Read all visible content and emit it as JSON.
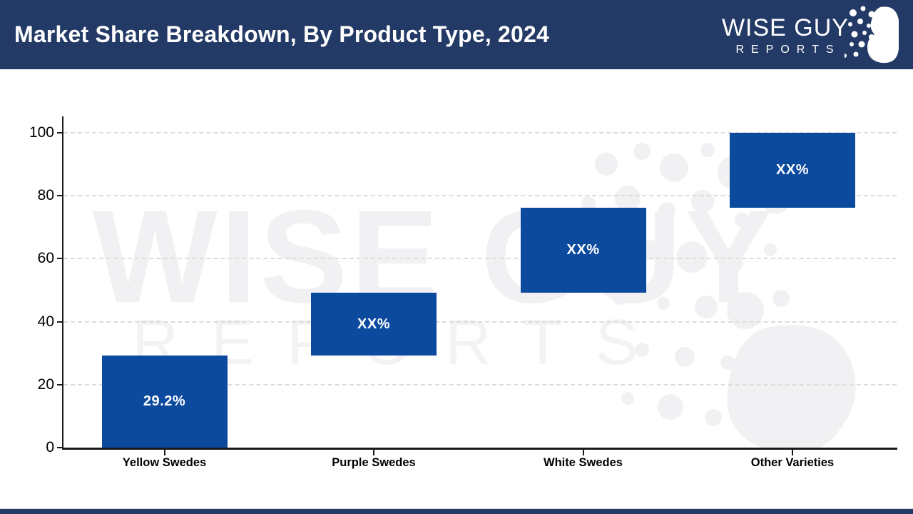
{
  "header": {
    "title": "Market Share Breakdown, By Product Type, 2024",
    "logo_line1": "WISE GUY",
    "logo_line2": "REPORTS"
  },
  "watermark": {
    "line1": "WISE GUY",
    "line2": "REPORTS"
  },
  "colors": {
    "navy": "#243a66",
    "bar_blue": "#0c4a9e",
    "grid": "#dcdcdc",
    "axis": "#1a1a1a"
  },
  "chart_data": {
    "type": "bar",
    "subtype": "waterfall",
    "title": "Market Share Breakdown, By Product Type, 2024",
    "categories": [
      "Yellow Swedes",
      "Purple Swedes",
      "White Swedes",
      "Other Varieties"
    ],
    "series": [
      {
        "name": "Market share (%)",
        "segments": [
          {
            "category": "Yellow Swedes",
            "start": 0,
            "end": 29.2,
            "label": "29.2%"
          },
          {
            "category": "Purple Swedes",
            "start": 29.2,
            "end": 49.2,
            "label": "XX%"
          },
          {
            "category": "White Swedes",
            "start": 49.2,
            "end": 76.1,
            "label": "XX%"
          },
          {
            "category": "Other Varieties",
            "start": 76.1,
            "end": 100,
            "label": "XX%"
          }
        ]
      }
    ],
    "xlabel": "",
    "ylabel": "",
    "ylim": [
      0,
      100
    ],
    "yticks": [
      0,
      20,
      40,
      60,
      80,
      100
    ],
    "grid": "horizontal-dashed",
    "legend": "none",
    "bar_color": "#0c4a9e",
    "label_color": "#ffffff"
  }
}
